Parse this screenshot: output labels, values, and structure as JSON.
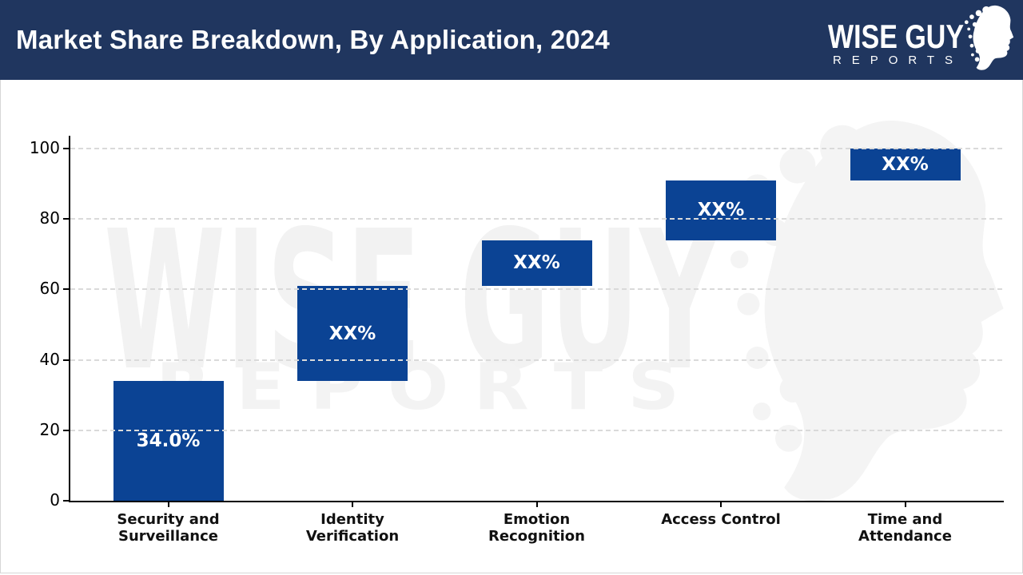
{
  "header": {
    "title": "Market Share Breakdown, By Application, 2024",
    "bg_color": "#20365F",
    "logo": {
      "brand": "WISE GUY",
      "sub": "REPORTS"
    }
  },
  "watermark": {
    "brand": "WISE GUY",
    "sub": "R E P O R T S"
  },
  "chart_data": {
    "type": "bar",
    "variant": "waterfall",
    "title": "Market Share Breakdown, By Application, 2024",
    "categories": [
      "Security and Surveillance",
      "Identity Verification",
      "Emotion Recognition",
      "Access Control",
      "Time and Attendance"
    ],
    "category_lines": [
      [
        "Security and",
        "Surveillance"
      ],
      [
        "Identity",
        "Verification"
      ],
      [
        "Emotion",
        "Recognition"
      ],
      [
        "Access Control"
      ],
      [
        "Time and",
        "Attendance"
      ]
    ],
    "values": [
      34,
      27,
      13,
      17,
      9
    ],
    "segments": [
      {
        "start": 0,
        "end": 34
      },
      {
        "start": 34,
        "end": 61
      },
      {
        "start": 61,
        "end": 74
      },
      {
        "start": 74,
        "end": 91
      },
      {
        "start": 91,
        "end": 100
      }
    ],
    "bar_labels": [
      "34.0%",
      "XX%",
      "XX%",
      "XX%",
      "XX%"
    ],
    "yticks": [
      0,
      20,
      40,
      60,
      80,
      100
    ],
    "ylim": [
      0,
      100
    ],
    "xlabel": "",
    "ylabel": "",
    "legend": "none",
    "grid": {
      "horizontal": true,
      "style": "dashed",
      "above_bars": true
    },
    "colors": {
      "bar": "#0B4394",
      "bar_label": "#FFFFFF",
      "header_bg": "#20365F",
      "grid": "#DADADA",
      "axis": "#000000",
      "watermark": "#F2F2F2"
    }
  }
}
